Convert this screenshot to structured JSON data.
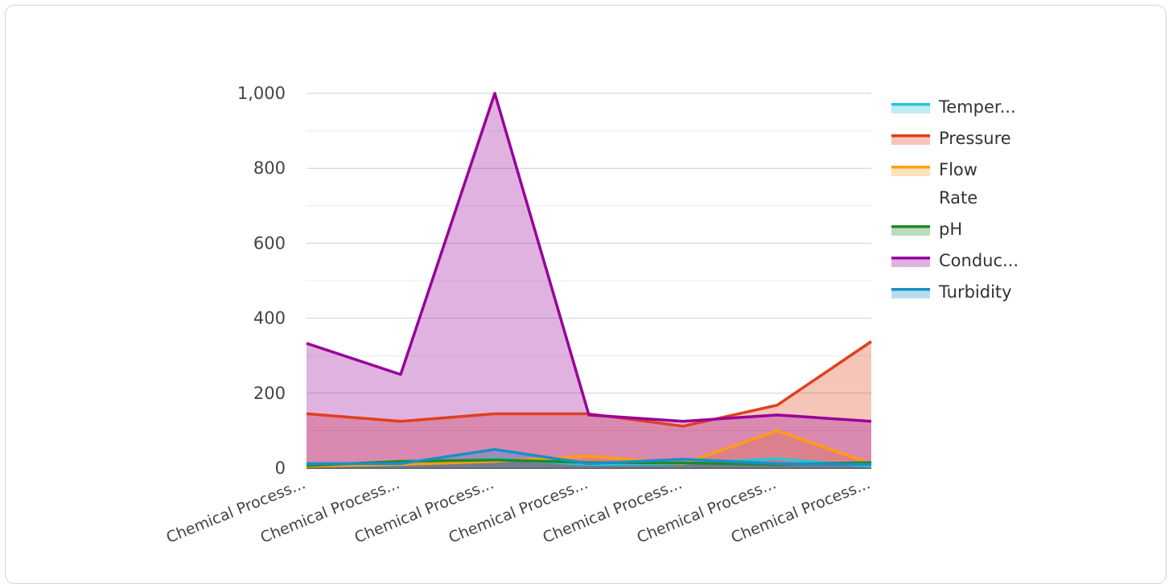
{
  "chart_data": {
    "type": "area",
    "categories": [
      "Chemical Process...",
      "Chemical Process...",
      "Chemical Process...",
      "Chemical Process...",
      "Chemical Process...",
      "Chemical Process...",
      "Chemical Process..."
    ],
    "series": [
      {
        "name": "Temper...",
        "color": "#26c6da",
        "values": [
          8,
          10,
          25,
          10,
          12,
          25,
          5
        ]
      },
      {
        "name": "Pressure",
        "color": "#e0401c",
        "values": [
          145,
          125,
          145,
          145,
          112,
          168,
          338
        ]
      },
      {
        "name": "Flow Rate",
        "legend_lines": [
          "Flow",
          "Rate"
        ],
        "color": "#ff9f10",
        "values": [
          5,
          10,
          18,
          32,
          12,
          100,
          12
        ]
      },
      {
        "name": "pH",
        "color": "#1e8a2a",
        "values": [
          7,
          18,
          22,
          15,
          14,
          10,
          15
        ]
      },
      {
        "name": "Conduc...",
        "color": "#990099",
        "values": [
          333,
          250,
          1000,
          142,
          125,
          142,
          125
        ]
      },
      {
        "name": "Turbidity",
        "color": "#1591c8",
        "values": [
          12,
          12,
          50,
          12,
          24,
          12,
          10
        ]
      }
    ],
    "ylim": [
      0,
      1000
    ],
    "yticks": [
      "0",
      "200",
      "400",
      "600",
      "800",
      "1,000"
    ],
    "ytick_values": [
      0,
      200,
      400,
      600,
      800,
      1000
    ],
    "grid": true,
    "legend_position": "right",
    "xlabel": "",
    "ylabel": "",
    "title": ""
  }
}
